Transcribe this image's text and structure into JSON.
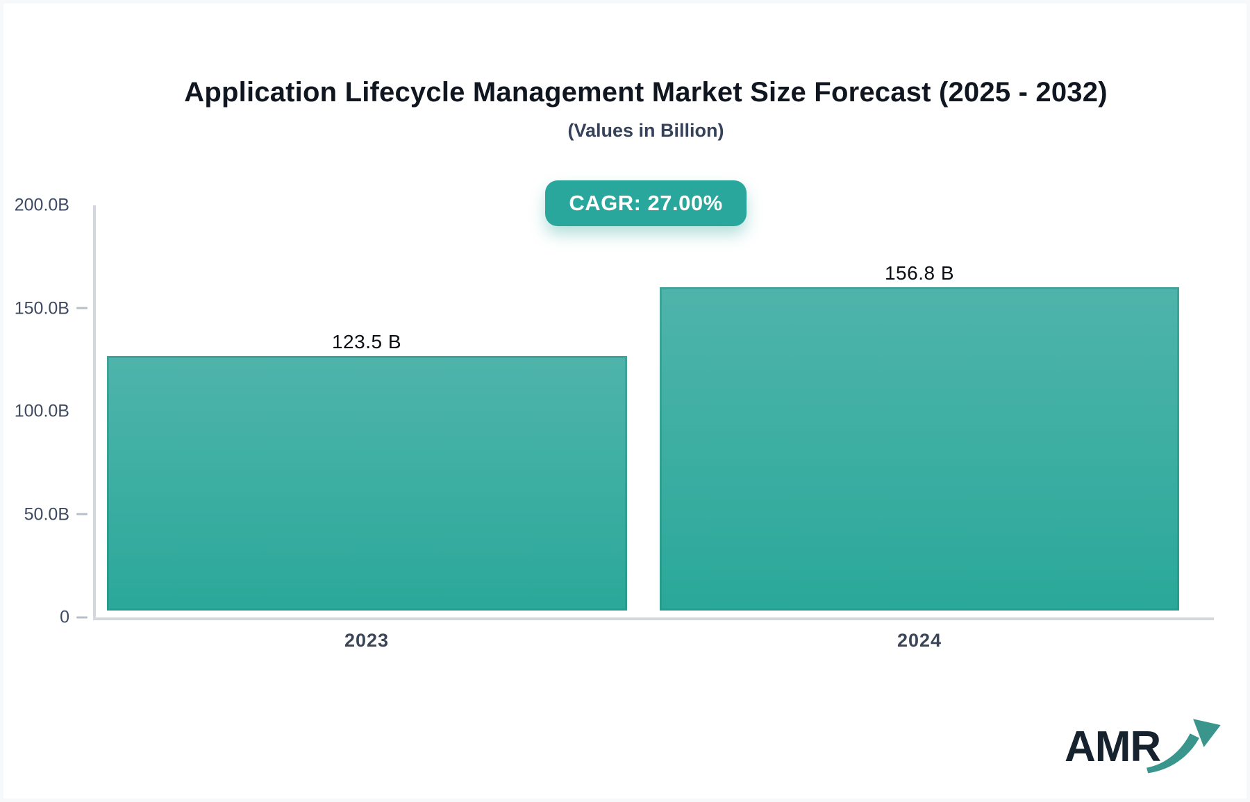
{
  "header": {
    "title": "Application Lifecycle Management Market Size Forecast (2025 - 2032)",
    "subtitle": "(Values in Billion)",
    "cagr_badge": "CAGR: 27.00%"
  },
  "chart_data": {
    "type": "bar",
    "title": "Application Lifecycle Management Market Size Forecast (2025 - 2032)",
    "subtitle": "(Values in Billion)",
    "categories": [
      "2023",
      "2024"
    ],
    "values": [
      123.5,
      156.8
    ],
    "value_labels": [
      "123.5 B",
      "156.8 B"
    ],
    "cagr_percent": 27.0,
    "ylim": [
      0,
      200
    ],
    "yticks": [
      {
        "label": "200.0B",
        "value": 200,
        "tick": false
      },
      {
        "label": "150.0B",
        "value": 150,
        "tick": true
      },
      {
        "label": "100.0B",
        "value": 100,
        "tick": false
      },
      {
        "label": "50.0B",
        "value": 50,
        "tick": true
      },
      {
        "label": "0",
        "value": 0,
        "tick": true
      }
    ],
    "grid": false,
    "legend": false,
    "bar_color_top": "#4fb4ab",
    "bar_color_bottom": "#2aa899",
    "axis_color": "#d4d8de"
  },
  "branding": {
    "logo_text": "AMR",
    "logo_text_color": "#16222e",
    "logo_arrow_color": "#3a968d"
  },
  "colors": {
    "accent_teal": "#2aa79c",
    "title_text": "#10161f",
    "subtitle_text": "#36425a",
    "axis_label_text": "#3e4a5f",
    "background": "#ffffff"
  }
}
